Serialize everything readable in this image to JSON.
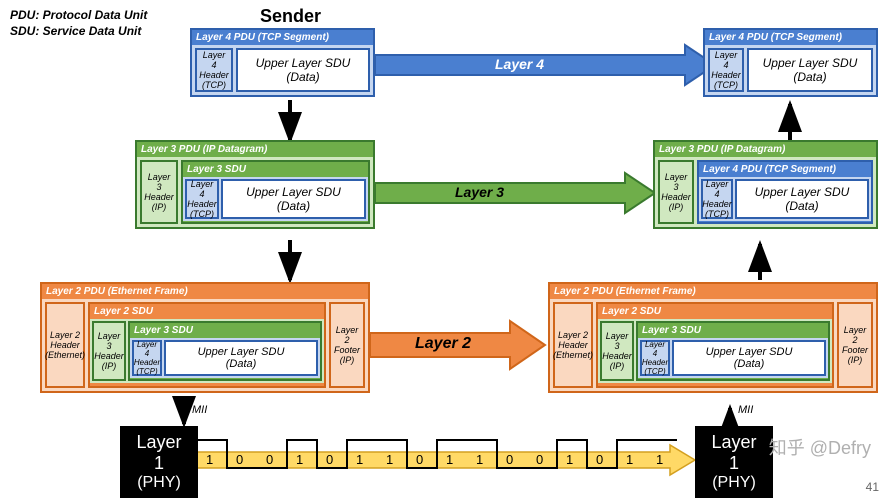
{
  "legend": {
    "line1": "PDU: Protocol Data Unit",
    "line2": "SDU: Service Data Unit"
  },
  "sender": "Sender",
  "labels": {
    "l4pdu": "Layer 4 PDU (TCP Segment)",
    "l3pdu": "Layer 3 PDU (IP Datagram)",
    "l2pdu": "Layer 2 PDU (Ethernet Frame)",
    "l3sdu": "Layer 3 SDU",
    "l2sdu": "Layer 2 SDU",
    "upperSdu": "Upper Layer SDU",
    "data": "(Data)",
    "l4hdr1": "Layer 4",
    "l4hdr2": "Header",
    "l4hdr3": "(TCP)",
    "l3hdr1": "Layer 3",
    "l3hdr2": "Header",
    "l3hdr3": "(IP)",
    "l2hdr1": "Layer 2",
    "l2hdr2": "Header",
    "l2hdr3": "(Ethernet)",
    "l2ftr1": "Layer 2",
    "l2ftr2": "Footer",
    "l2ftr3": "(IP)",
    "mii": "MII",
    "phy1": "Layer 1",
    "phy2": "(PHY)"
  },
  "arrows": {
    "l4": "Layer 4",
    "l3": "Layer 3",
    "l2": "Layer 2"
  },
  "bits": [
    "1",
    "0",
    "0",
    "1",
    "0",
    "1",
    "1",
    "0",
    "1",
    "1",
    "0",
    "0",
    "1",
    "0",
    "1",
    "1"
  ],
  "colors": {
    "blue_border": "#2e5fac",
    "blue_fill": "#4a7fd0",
    "blue_light": "#c5d6f0",
    "green_border": "#3a7a2e",
    "green_fill": "#6fae4a",
    "green_light": "#d0e8c0",
    "orange_border": "#d0661a",
    "orange_fill": "#ef8844",
    "orange_light": "#fad8c0",
    "yellow_fill": "#ffd966",
    "yellow_border": "#d4a020",
    "black": "#000000"
  },
  "watermark": "知乎 @Defry",
  "pagenum": "41"
}
